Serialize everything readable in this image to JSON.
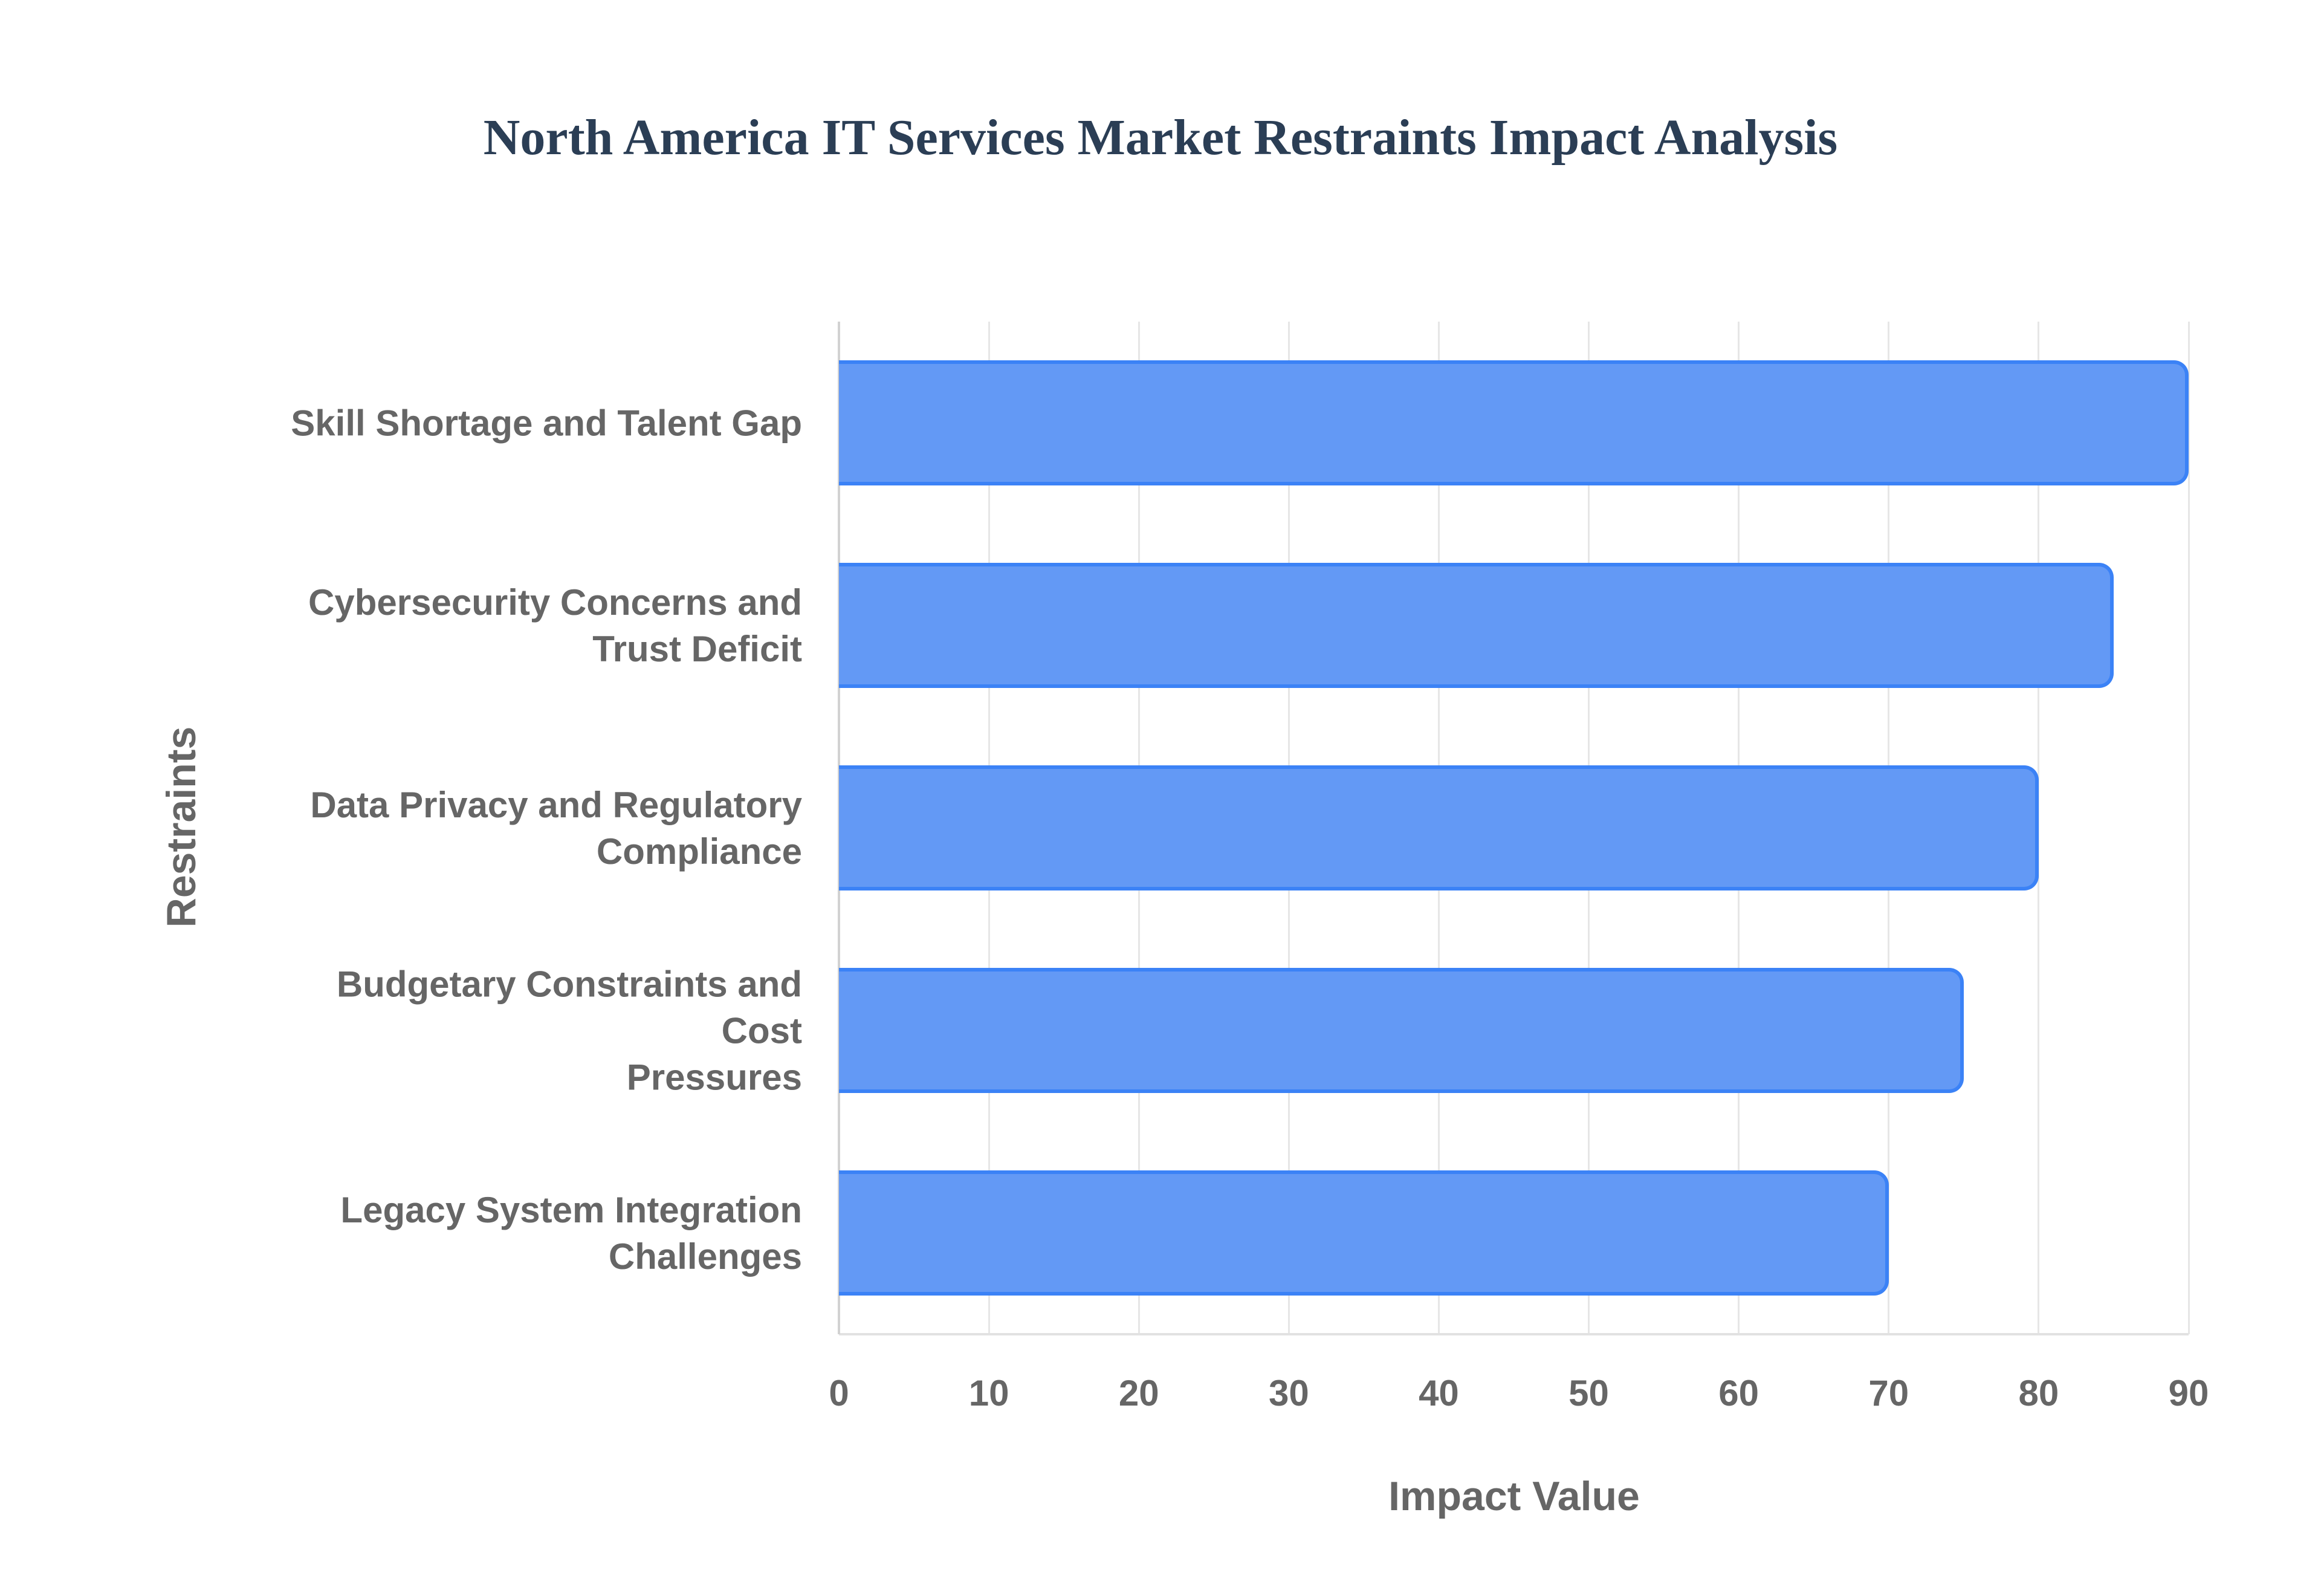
{
  "chart_data": {
    "type": "bar",
    "orientation": "horizontal",
    "title": "North America IT Services Market Restraints Impact Analysis",
    "xlabel": "Impact Value",
    "ylabel": "Restraints",
    "categories": [
      "Skill Shortage and Talent Gap",
      "Cybersecurity Concerns and Trust Deficit",
      "Data Privacy and Regulatory Compliance",
      "Budgetary Constraints and Cost Pressures",
      "Legacy System Integration Challenges"
    ],
    "category_lines": [
      [
        "Skill Shortage and Talent Gap"
      ],
      [
        "Cybersecurity Concerns and",
        "Trust Deficit"
      ],
      [
        "Data Privacy and Regulatory",
        "Compliance"
      ],
      [
        "Budgetary Constraints and Cost",
        "Pressures"
      ],
      [
        "Legacy System Integration",
        "Challenges"
      ]
    ],
    "values": [
      90,
      85,
      80,
      75,
      70
    ],
    "xlim": [
      0,
      90
    ],
    "x_ticks": [
      "0",
      "10",
      "20",
      "30",
      "40",
      "50",
      "60",
      "70",
      "80",
      "90"
    ],
    "grid": true,
    "legend": "none",
    "colors": {
      "bar_fill": "#6399f5",
      "bar_border": "#3b82f6",
      "title": "#2b3e55",
      "axis_text": "#666666"
    }
  }
}
